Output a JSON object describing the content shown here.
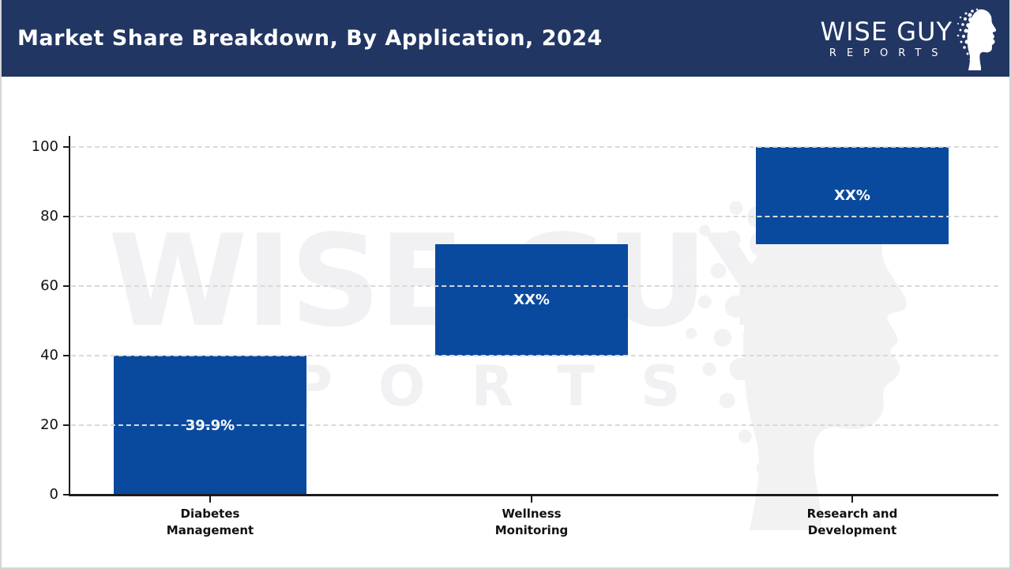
{
  "header": {
    "title": "Market Share Breakdown, By Application, 2024",
    "logo": {
      "wordmark": "WISE GUY",
      "subtext": "REPORTS"
    },
    "bg_color": "#213663"
  },
  "watermark": {
    "wordmark": "WISE GUY",
    "subtext": "REPORTS"
  },
  "chart_data": {
    "type": "bar",
    "subtype": "waterfall",
    "title": "Market Share Breakdown, By Application, 2024",
    "categories": [
      "Diabetes Management",
      "Wellness Monitoring",
      "Research and Development"
    ],
    "category_tick_lines": [
      [
        "Diabetes",
        "Management"
      ],
      [
        "Wellness",
        "Monitoring"
      ],
      [
        "Research and",
        "Development"
      ]
    ],
    "series": [
      {
        "name": "Diabetes Management",
        "start": 0,
        "end": 39.9,
        "label": "39.9%"
      },
      {
        "name": "Wellness Monitoring",
        "start": 39.9,
        "end": 72,
        "label": "XX%"
      },
      {
        "name": "Research and Development",
        "start": 72,
        "end": 100,
        "label": "XX%"
      }
    ],
    "ylim": [
      0,
      100
    ],
    "yticks": [
      0,
      20,
      40,
      60,
      80,
      100
    ],
    "grid": {
      "horizontal": true,
      "style": "dashed",
      "color": "#d9d9d9"
    },
    "bar_color": "#0a4a9e",
    "bar_label_color": "#ffffff",
    "axis_color": "#1c1c1c",
    "legend": "none"
  }
}
